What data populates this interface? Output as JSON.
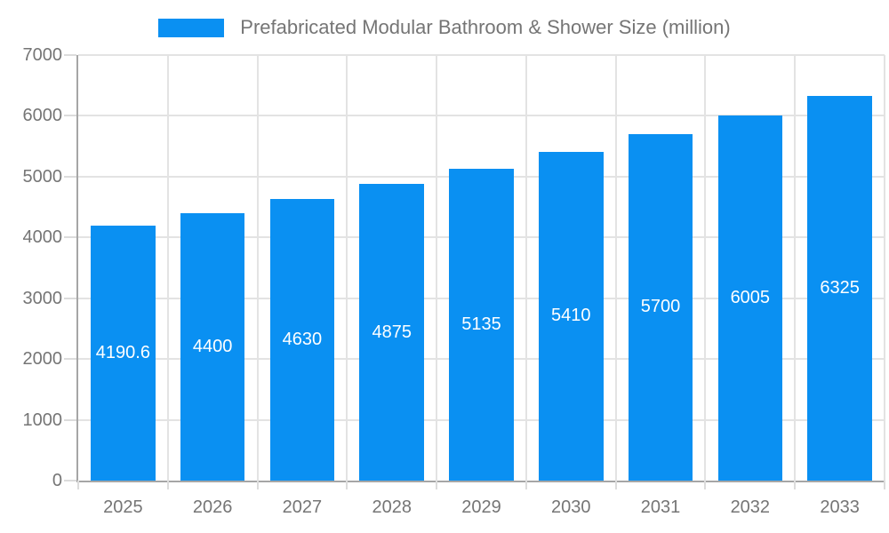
{
  "chart": {
    "legend_label": "Prefabricated Modular Bathroom & Shower Size (million)"
  },
  "chart_data": {
    "type": "bar",
    "title": "Prefabricated Modular Bathroom & Shower Size (million)",
    "categories": [
      "2025",
      "2026",
      "2027",
      "2028",
      "2029",
      "2030",
      "2031",
      "2032",
      "2033"
    ],
    "values": [
      4190.6,
      4400,
      4630,
      4875,
      5135,
      5410,
      5700,
      6005,
      6325
    ],
    "value_labels": [
      "4190.6",
      "4400",
      "4630",
      "4875",
      "5135",
      "5410",
      "5700",
      "6005",
      "6325"
    ],
    "xlabel": "",
    "ylabel": "",
    "ylim": [
      0,
      7000
    ],
    "y_ticks": [
      0,
      1000,
      2000,
      3000,
      4000,
      5000,
      6000,
      7000
    ],
    "grid": "horizontal and vertical gridlines on",
    "legend_position": "top-center",
    "bar_color": "#0a90f2",
    "bar_label_color": "#ffffff",
    "axis_text_color": "#757575",
    "gridline_color": "#e3e3e3",
    "axis_line_color": "#a6a6a6"
  }
}
